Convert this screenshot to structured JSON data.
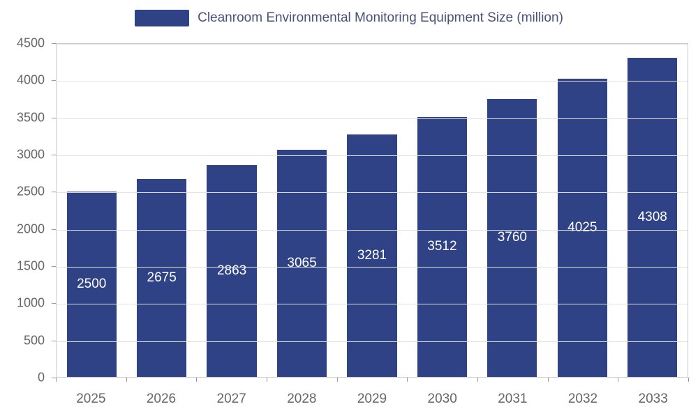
{
  "legend": {
    "label": "Cleanroom Environmental Monitoring Equipment Size (million)"
  },
  "chart_data": {
    "type": "bar",
    "title": "Cleanroom Environmental Monitoring Equipment Size (million)",
    "categories": [
      "2025",
      "2026",
      "2027",
      "2028",
      "2029",
      "2030",
      "2031",
      "2032",
      "2033"
    ],
    "values": [
      2500,
      2675,
      2863,
      3065,
      3281,
      3512,
      3760,
      4025,
      4308
    ],
    "xlabel": "",
    "ylabel": "",
    "ylim": [
      0,
      4500
    ],
    "ytick_step": 500,
    "grid": true,
    "legend_position": "top",
    "bar_color": "#2e4285",
    "value_label_color": "#ffffff",
    "axis_text_color": "#666666",
    "gridline_color": "#e2e2e2"
  }
}
